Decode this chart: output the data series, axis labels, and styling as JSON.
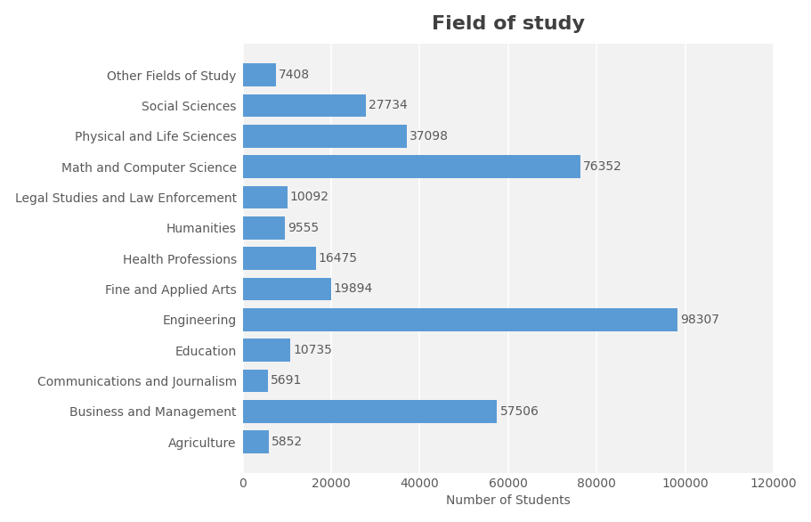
{
  "title": "Field of study",
  "xlabel": "Number of Students",
  "categories": [
    "Agriculture",
    "Business and Management",
    "Communications and Journalism",
    "Education",
    "Engineering",
    "Fine and Applied Arts",
    "Health Professions",
    "Humanities",
    "Legal Studies and Law Enforcement",
    "Math and Computer Science",
    "Physical and Life Sciences",
    "Social Sciences",
    "Other Fields of Study"
  ],
  "values": [
    5852,
    57506,
    5691,
    10735,
    98307,
    19894,
    16475,
    9555,
    10092,
    76352,
    37098,
    27734,
    7408
  ],
  "bar_color": "#5B9BD5",
  "xlim": [
    0,
    120000
  ],
  "xticks": [
    0,
    20000,
    40000,
    60000,
    80000,
    100000,
    120000
  ],
  "background_color": "#ffffff",
  "plot_bg_color": "#f2f2f2",
  "title_fontsize": 16,
  "title_fontweight": "bold",
  "title_color": "#404040",
  "label_color": "#595959",
  "label_fontsize": 10,
  "value_fontsize": 10,
  "xlabel_fontsize": 10,
  "grid_color": "#ffffff",
  "bar_height": 0.75
}
